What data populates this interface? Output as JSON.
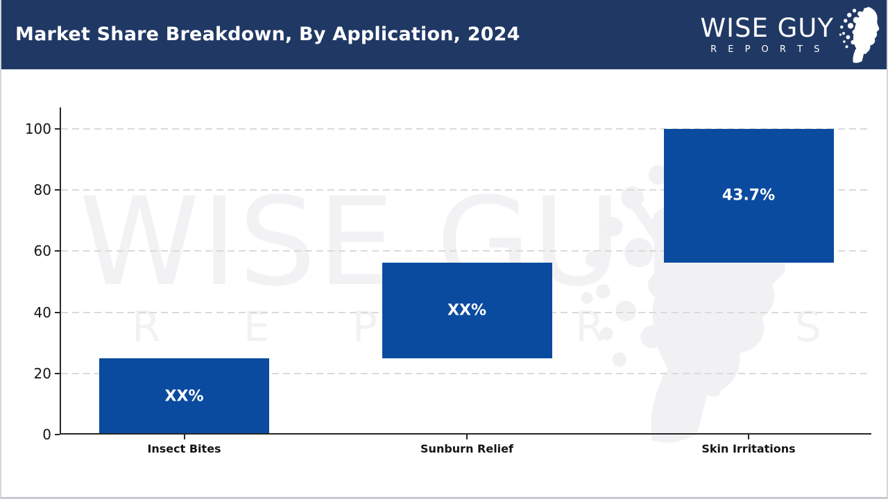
{
  "header": {
    "title": "Market Share Breakdown, By Application, 2024",
    "logo": {
      "line1": "WISE GUY",
      "line2": "R E P O R T S"
    }
  },
  "watermark": {
    "line1": "WISE GUY",
    "line2": "R E P O R T S"
  },
  "chart_data": {
    "type": "bar",
    "subtype": "waterfall",
    "title": "Market Share Breakdown, By Application, 2024",
    "categories": [
      "Insect Bites",
      "Sunburn Relief",
      "Skin Irritations"
    ],
    "segments": [
      {
        "category": "Insect Bites",
        "start": 0,
        "value": 25,
        "label": "XX%"
      },
      {
        "category": "Sunburn Relief",
        "start": 25,
        "value": 31.3,
        "label": "XX%"
      },
      {
        "category": "Skin Irritations",
        "start": 56.3,
        "value": 43.7,
        "label": "43.7%"
      }
    ],
    "y_ticks": [
      0,
      20,
      40,
      60,
      80,
      100
    ],
    "ylim": [
      0,
      107
    ],
    "xlabel": "",
    "ylabel": "",
    "grid": "horizontal-dashed",
    "legend": "none",
    "bar_color": "#0b4b9f",
    "bar_label_color": "#ffffff"
  },
  "colors": {
    "header_bg": "#203864",
    "bar": "#0b4b9f",
    "axis": "#262626",
    "grid": "#dadada",
    "text": "#141414",
    "watermark": "#f2f2f4"
  }
}
